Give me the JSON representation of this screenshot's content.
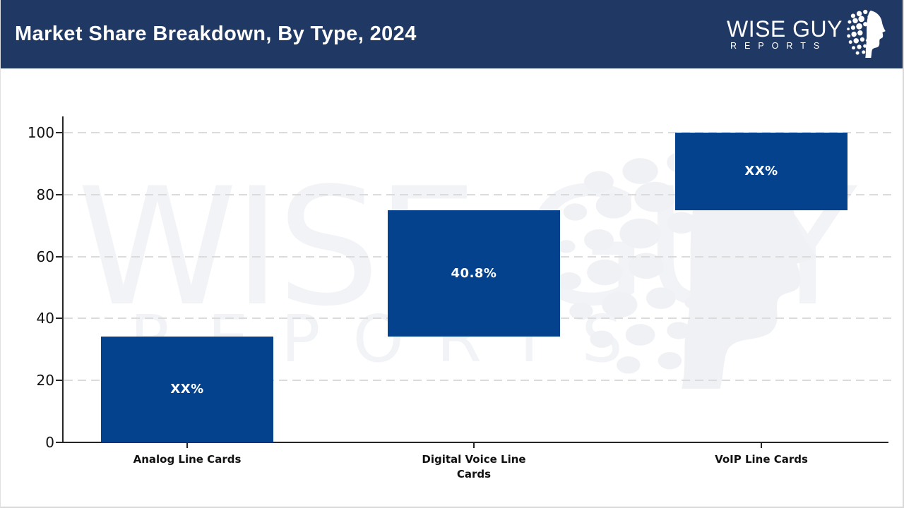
{
  "header": {
    "title": "Market Share Breakdown, By Type, 2024",
    "background_color": "#1f3864",
    "logo": {
      "wordmark": "WISE GUY",
      "subtext": "REPORTS"
    }
  },
  "watermark": {
    "wordmark": "WISE GUY",
    "subtext": "REPORTS"
  },
  "chart_data": {
    "type": "bar",
    "subtype": "floating-waterfall",
    "title": "Market Share Breakdown, By Type, 2024",
    "categories": [
      "Analog Line Cards",
      "Digital Voice Line Cards",
      "VoIP Line Cards"
    ],
    "segments": [
      {
        "category": "Analog Line Cards",
        "start": 0,
        "end": 34.2,
        "label": "XX%"
      },
      {
        "category": "Digital Voice Line Cards",
        "start": 34.2,
        "end": 75,
        "label": "40.8%"
      },
      {
        "category": "VoIP Line Cards",
        "start": 75,
        "end": 100,
        "label": "XX%"
      }
    ],
    "yticks": [
      "0",
      "20",
      "40",
      "60",
      "80",
      "100"
    ],
    "ylim": [
      0,
      100
    ],
    "xlabel": "",
    "ylabel": "",
    "grid": "horizontal-dashed",
    "legend": "none",
    "bar_color": "#05428e",
    "bar_label_color": "#ffffff"
  }
}
